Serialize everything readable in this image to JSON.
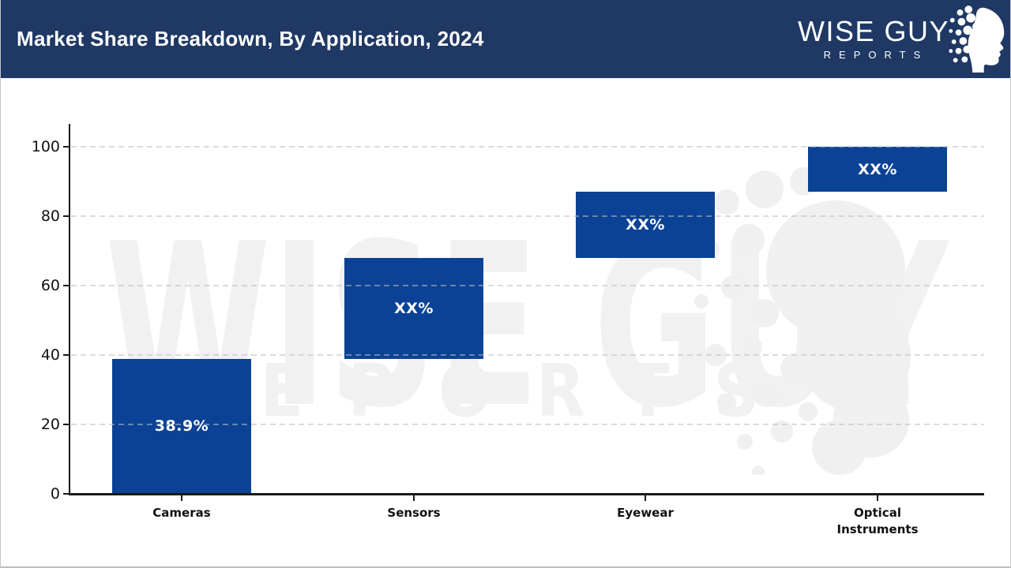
{
  "header": {
    "title": "Market Share Breakdown, By Application, 2024",
    "logo": {
      "wordmark": "WISE GUY",
      "subtext": "REPORTS"
    }
  },
  "watermark": {
    "line1": "WISE GUY",
    "line2": "REPORTS"
  },
  "colors": {
    "header_bg": "#1f3864",
    "header_text": "#ffffff",
    "bar": "#0b4295",
    "bar_label_text": "#ffffff",
    "axis": "#1a1a1a",
    "gridline": "#e3e3e3",
    "tick_label_text": "#111111",
    "watermark": "#f1f1f1"
  },
  "chart_data": {
    "type": "bar",
    "subtype": "waterfall",
    "title": "Market Share Breakdown, By Application, 2024",
    "xlabel": "",
    "ylabel": "",
    "ylim": [
      0,
      100
    ],
    "yticks": [
      0,
      20,
      40,
      60,
      80,
      100
    ],
    "grid": true,
    "legend": false,
    "categories": [
      "Cameras",
      "Sensors",
      "Eyewear",
      "Optical Instruments"
    ],
    "segments": [
      {
        "category": "Cameras",
        "start": 0,
        "end": 38.9,
        "label": "38.9%"
      },
      {
        "category": "Sensors",
        "start": 38.9,
        "end": 68,
        "label": "XX%"
      },
      {
        "category": "Eyewear",
        "start": 68,
        "end": 87,
        "label": "XX%"
      },
      {
        "category": "Optical Instruments",
        "start": 87,
        "end": 100,
        "label": "XX%"
      }
    ]
  }
}
